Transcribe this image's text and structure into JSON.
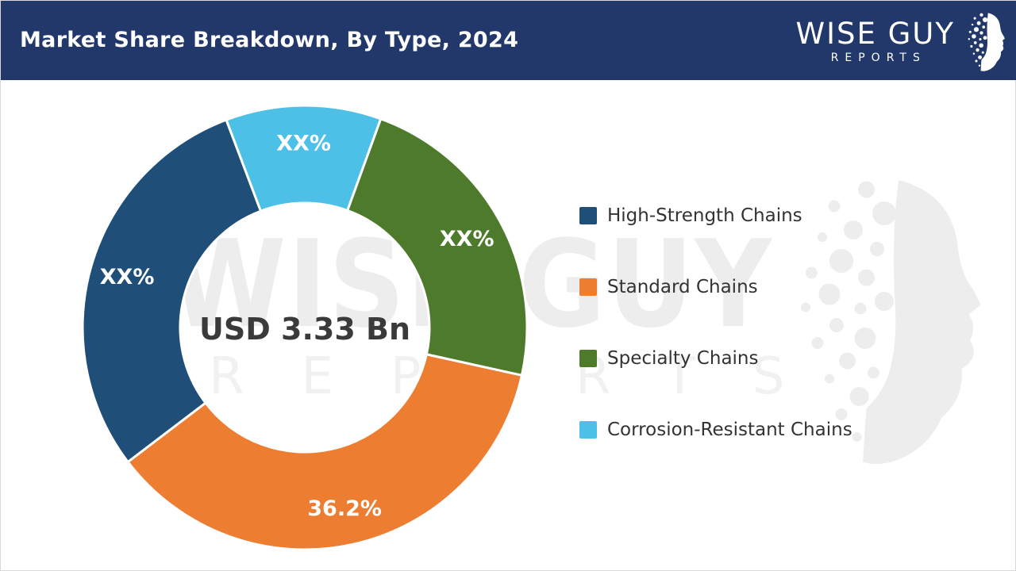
{
  "header": {
    "title": "Market Share Breakdown, By Type, 2024",
    "bg_color": "#22386A",
    "logo": {
      "line1": "WISE GUY",
      "line2": "REPORTS"
    }
  },
  "watermark": {
    "line1": "WISE GUY",
    "line2": "REPORTS"
  },
  "chart_data": {
    "type": "pie",
    "subtype": "donut",
    "title": "Market Share Breakdown, By Type, 2024",
    "center_label": "USD 3.33 Bn",
    "start_angle_deg": 110.7,
    "direction": "counterclockwise",
    "legend_position": "right",
    "segments": [
      {
        "label": "High-Strength Chains",
        "display_value": "XX%",
        "share_pct": 29.6,
        "color": "#1F4E79"
      },
      {
        "label": "Standard Chains",
        "display_value": "36.2%",
        "share_pct": 36.2,
        "color": "#ED7D31"
      },
      {
        "label": "Specialty Chains",
        "display_value": "XX%",
        "share_pct": 22.9,
        "color": "#4E7B2B"
      },
      {
        "label": "Corrosion-Resistant Chains",
        "display_value": "XX%",
        "share_pct": 11.3,
        "color": "#4DC0E8"
      }
    ],
    "colors": {
      "center_text": "#3a3a3a",
      "legend_text": "#333333",
      "separator": "#ffffff",
      "watermark": "#ededed"
    }
  }
}
